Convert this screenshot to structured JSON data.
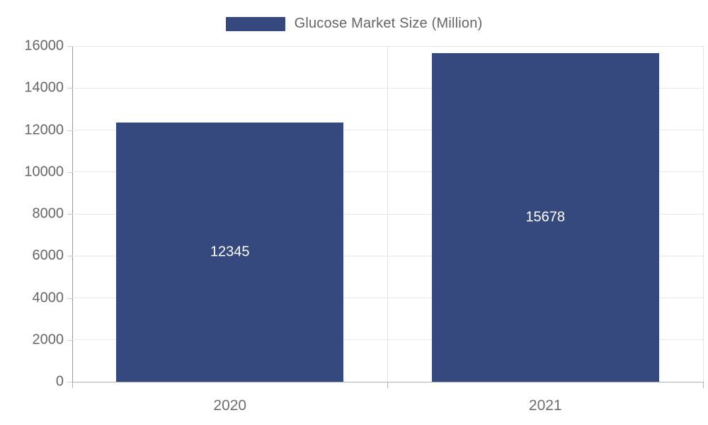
{
  "chart_data": {
    "type": "bar",
    "title": "",
    "legend": {
      "label": "Glucose Market Size (Million)",
      "position": "top-center"
    },
    "categories": [
      "2020",
      "2021"
    ],
    "series": [
      {
        "name": "Glucose Market Size (Million)",
        "values": [
          12345,
          15678
        ]
      }
    ],
    "data_labels": [
      "12345",
      "15678"
    ],
    "data_label_position": "inside-middle",
    "xlabel": "",
    "ylabel": "",
    "ylim": [
      0,
      16000
    ],
    "yticks": [
      0,
      2000,
      4000,
      6000,
      8000,
      10000,
      12000,
      14000,
      16000
    ],
    "grid": true,
    "legend_visible": true,
    "colors": {
      "bar": "#35497e",
      "bar_label_text": "#ffffff",
      "axis_text": "#666666",
      "gridline": "#e8e8e8",
      "y_axis_line": "#999999",
      "x_axis_line": "#b0b0b0"
    }
  }
}
